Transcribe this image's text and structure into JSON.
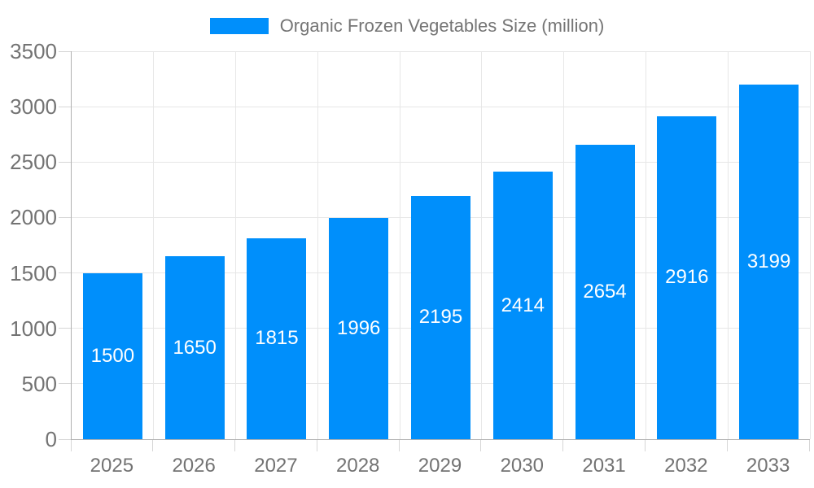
{
  "chart_data": {
    "type": "bar",
    "title": "Organic Frozen Vegetables Size (million)",
    "legend": {
      "position": "top",
      "entries": [
        "Organic Frozen Vegetables Size (million)"
      ]
    },
    "categories": [
      "2025",
      "2026",
      "2027",
      "2028",
      "2029",
      "2030",
      "2031",
      "2032",
      "2033"
    ],
    "series": [
      {
        "name": "Organic Frozen Vegetables Size (million)",
        "values": [
          1500,
          1650,
          1815,
          1996,
          2195,
          2414,
          2654,
          2916,
          3199
        ]
      }
    ],
    "data_labels": [
      "1500",
      "1650",
      "1815",
      "1996",
      "2195",
      "2414",
      "2654",
      "2916",
      "3199"
    ],
    "xlabel": "",
    "ylabel": "",
    "ylim": [
      0,
      3500
    ],
    "ytick_step": 500,
    "yticks": [
      0,
      500,
      1000,
      1500,
      2000,
      2500,
      3000,
      3500
    ],
    "ytick_labels": [
      "0",
      "500",
      "1000",
      "1500",
      "2000",
      "2500",
      "3000",
      "3500"
    ],
    "grid": true,
    "colors": {
      "bar": "#008FFB",
      "bar_label_text": "#ffffff",
      "axis_text": "#737373",
      "legend_text": "#757575",
      "gridline": "#e7e7e7",
      "axis_line": "#b1b1b1",
      "tick": "#d6d6d6",
      "background": "#ffffff"
    }
  }
}
